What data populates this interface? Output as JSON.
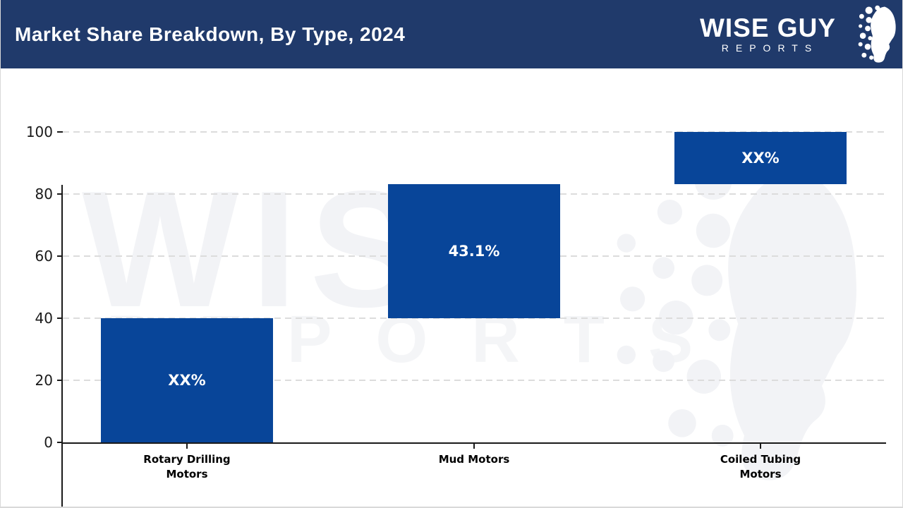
{
  "header": {
    "title": "Market Share Breakdown, By Type, 2024",
    "logo": {
      "line1": "WISE GUY",
      "line2": "REPORTS"
    }
  },
  "watermark": {
    "line1": "WISE",
    "line2": "REPORTS"
  },
  "colors": {
    "header_bg": "#203a6b",
    "bar_blue": "#084599",
    "axis": "#1a1a1a",
    "gridline": "#dcdcdc",
    "watermark_gray": "#f2f3f6"
  },
  "chart_data": {
    "type": "bar",
    "subtype": "waterfall-stacked-segments",
    "title": "Market Share Breakdown, By Type, 2024",
    "categories": [
      "Rotary Drilling\nMotors",
      "Mud Motors",
      "Coiled Tubing\nMotors"
    ],
    "bars": [
      {
        "category": "Rotary Drilling Motors",
        "base": 0,
        "value": 40,
        "label": "XX%"
      },
      {
        "category": "Mud Motors",
        "base": 40,
        "value": 43.1,
        "label": "43.1%"
      },
      {
        "category": "Coiled Tubing Motors",
        "base": 83.1,
        "value": 16.9,
        "label": "XX%"
      }
    ],
    "ylim": [
      0,
      100
    ],
    "yticks": [
      0,
      20,
      40,
      60,
      80,
      100
    ],
    "xlabel": "",
    "ylabel": "",
    "grid": "horizontal-dashed",
    "legend": "none",
    "bar_color": "#084599",
    "bar_label_color": "#ffffff"
  }
}
